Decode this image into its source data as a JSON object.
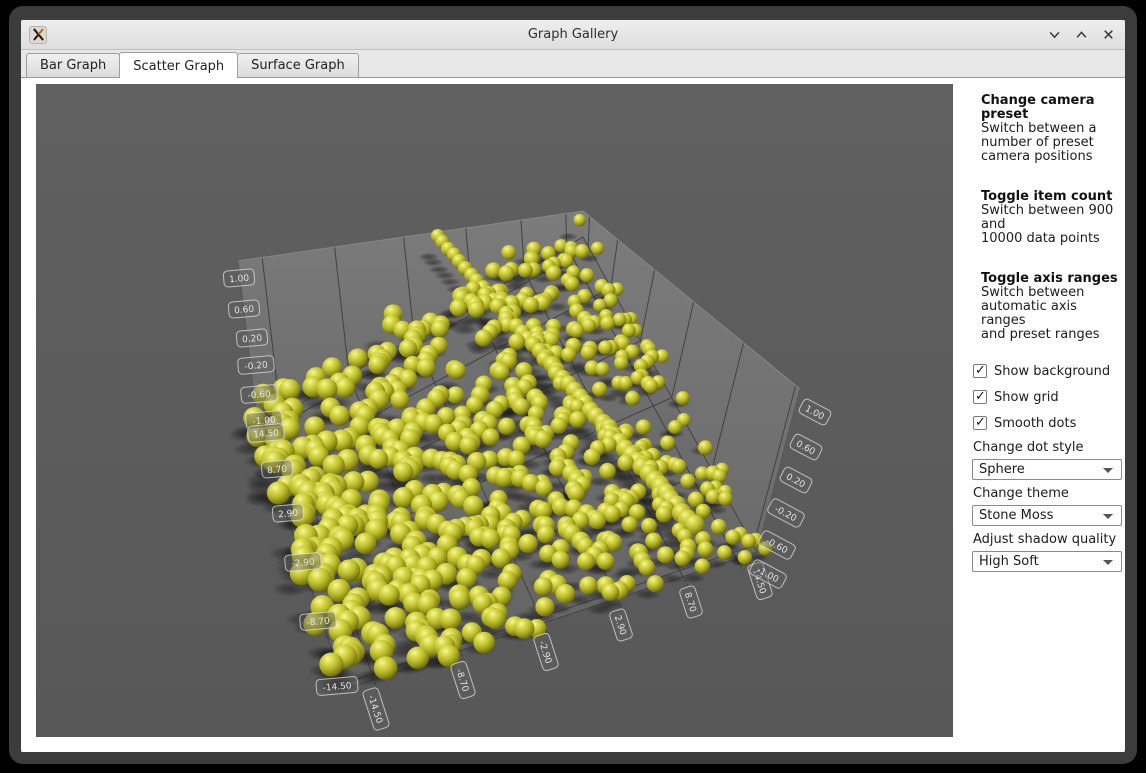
{
  "window": {
    "title": "Graph Gallery",
    "controls": [
      {
        "name": "minimize"
      },
      {
        "name": "maximize"
      },
      {
        "name": "close"
      }
    ]
  },
  "tabs": [
    {
      "label": "Bar Graph",
      "active": false
    },
    {
      "label": "Scatter Graph",
      "active": true
    },
    {
      "label": "Surface Graph",
      "active": false
    }
  ],
  "sidebar": {
    "buttons": [
      {
        "title": "Change camera preset",
        "lines": [
          "Switch between a",
          "number of preset",
          "camera positions"
        ]
      },
      {
        "title": "Toggle item count",
        "lines": [
          "Switch between 900 and",
          "10000 data points"
        ]
      },
      {
        "title": "Toggle axis ranges",
        "lines": [
          "Switch between",
          "automatic axis ranges",
          "and preset ranges"
        ]
      }
    ],
    "checkboxes": [
      {
        "label": "Show background",
        "checked": true
      },
      {
        "label": "Show grid",
        "checked": true
      },
      {
        "label": "Smooth dots",
        "checked": true
      }
    ],
    "selects": [
      {
        "label": "Change dot style",
        "value": "Sphere"
      },
      {
        "label": "Change theme",
        "value": "Stone Moss"
      },
      {
        "label": "Adjust shadow quality",
        "value": "High Soft"
      }
    ]
  },
  "plot": {
    "colors": {
      "background": "#5c5c5c",
      "floor_top": "#747474",
      "floor_bottom": "#636363",
      "wall": "#787878",
      "grid": "#3c3c3c",
      "sphere": "#b9b929",
      "label_text": "#e4e4e4"
    },
    "axis_labels": {
      "y_left": [
        "1.00",
        "0.60",
        "0.20",
        "-0.20",
        "-0.60",
        "-1.00"
      ],
      "x_left": [
        "14.50",
        "8.70",
        "2.90",
        "-2.90",
        "-8.70",
        "-14.50"
      ],
      "z_bottom": [
        "-14.50",
        "-8.70",
        "-2.90",
        "2.90",
        "8.70",
        "14.50"
      ],
      "y_right": [
        "1.00",
        "0.60",
        "0.20",
        "-0.20",
        "-0.60",
        "-1.00"
      ]
    },
    "point_count": 640,
    "line_point_count": 46,
    "seed": 97531
  }
}
